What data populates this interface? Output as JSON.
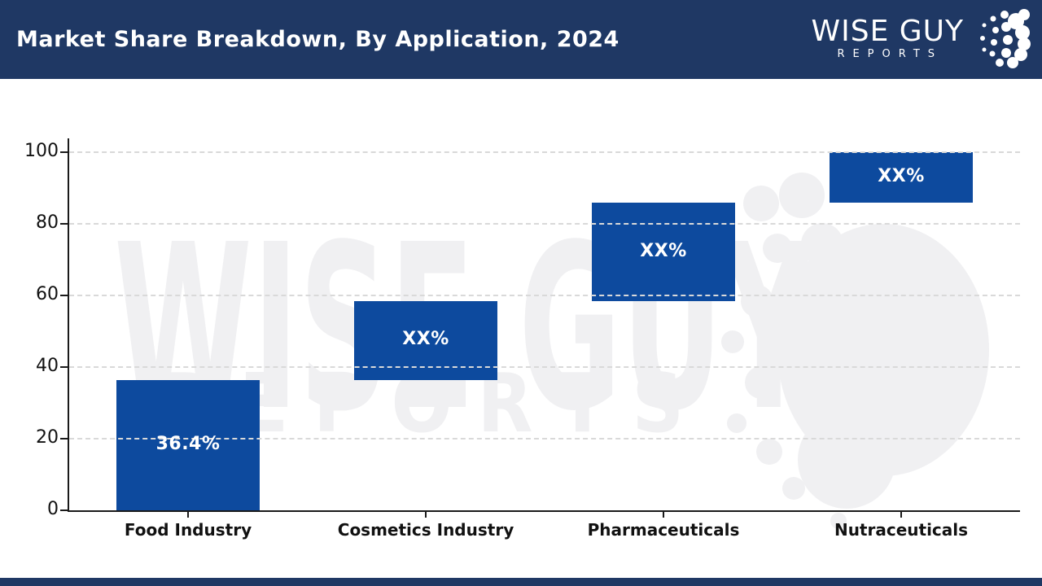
{
  "header": {
    "title": "Market Share Breakdown, By Application, 2024",
    "background": "#1f3864",
    "logo": {
      "line1": "WISE GUY",
      "line2": "REPORTS"
    }
  },
  "watermark": {
    "line1": "WISE GUY",
    "line2": "R E P O R T S",
    "color": "#f0f0f2"
  },
  "chart_data": {
    "type": "bar",
    "subtype": "waterfall",
    "title": "Market Share Breakdown, By Application, 2024",
    "xlabel": "",
    "ylabel": "",
    "categories": [
      "Food Industry",
      "Cosmetics Industry",
      "Pharmaceuticals",
      "Nutraceuticals"
    ],
    "series": [
      {
        "name": "Food Industry",
        "start": 0,
        "end": 36.4,
        "label": "36.4%"
      },
      {
        "name": "Cosmetics Industry",
        "start": 36.4,
        "end": 58.4,
        "label": "XX%"
      },
      {
        "name": "Pharmaceuticals",
        "start": 58.4,
        "end": 85.8,
        "label": "XX%"
      },
      {
        "name": "Nutraceuticals",
        "start": 85.8,
        "end": 100,
        "label": "XX%"
      }
    ],
    "yticks": [
      0,
      20,
      40,
      60,
      80,
      100
    ],
    "ylim": [
      0,
      104
    ],
    "grid": "horizontal-dashed",
    "legend": "none",
    "bar_color": "#0d4a9e",
    "grid_color": "#d9d9d9",
    "axis_color": "#1a1a1a"
  }
}
